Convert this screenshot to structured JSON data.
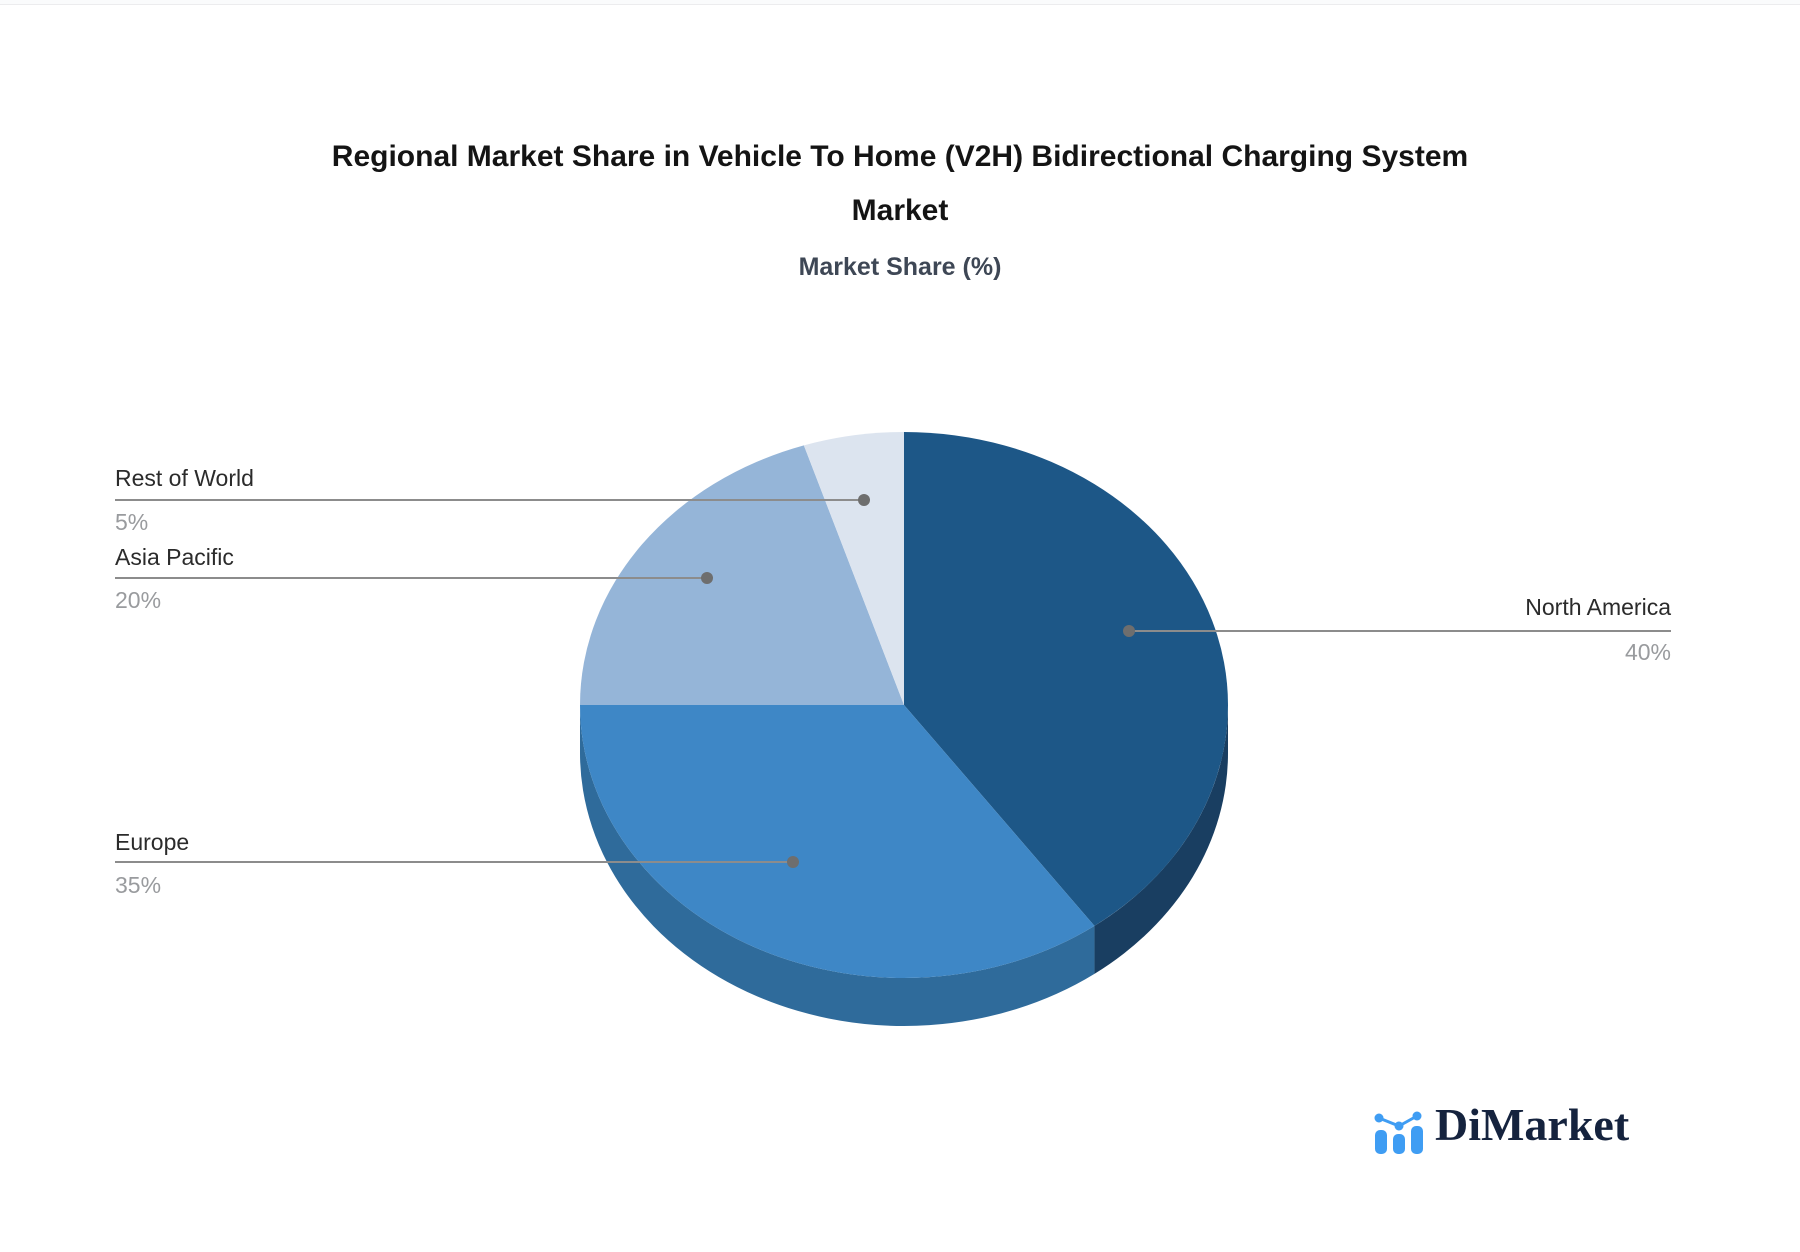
{
  "header": {
    "title_lines": [
      "Regional Market Share in Vehicle To Home (V2H) Bidirectional Charging System",
      "Market"
    ],
    "subtitle": "Market Share (%)"
  },
  "chart_data": {
    "type": "pie",
    "style": "3d",
    "title": "Regional Market Share in Vehicle To Home (V2H) Bidirectional Charging System Market",
    "subtitle": "Market Share (%)",
    "unit": "%",
    "direction": "clockwise",
    "start_angle_deg": 0,
    "labels": [
      "North America",
      "Europe",
      "Asia Pacific",
      "Rest of World"
    ],
    "values": [
      40,
      35,
      20,
      5
    ],
    "percent_labels": [
      "40%",
      "35%",
      "20%",
      "5%"
    ],
    "colors": [
      "#1d5787",
      "#3e87c6",
      "#95b5d8",
      "#dce4ef"
    ],
    "side_colors": [
      "#193e61",
      "#2f6b9b",
      "#6c89a8",
      "#a9b8c9"
    ],
    "legend_position": "callouts",
    "leader_line_color": "#8c8c8c",
    "leader_dot_color": "#6e6e6e"
  },
  "branding": {
    "logo_text": "DiMarket",
    "logo_text_color": "#15233e",
    "icon_color": "#3f9df3"
  }
}
